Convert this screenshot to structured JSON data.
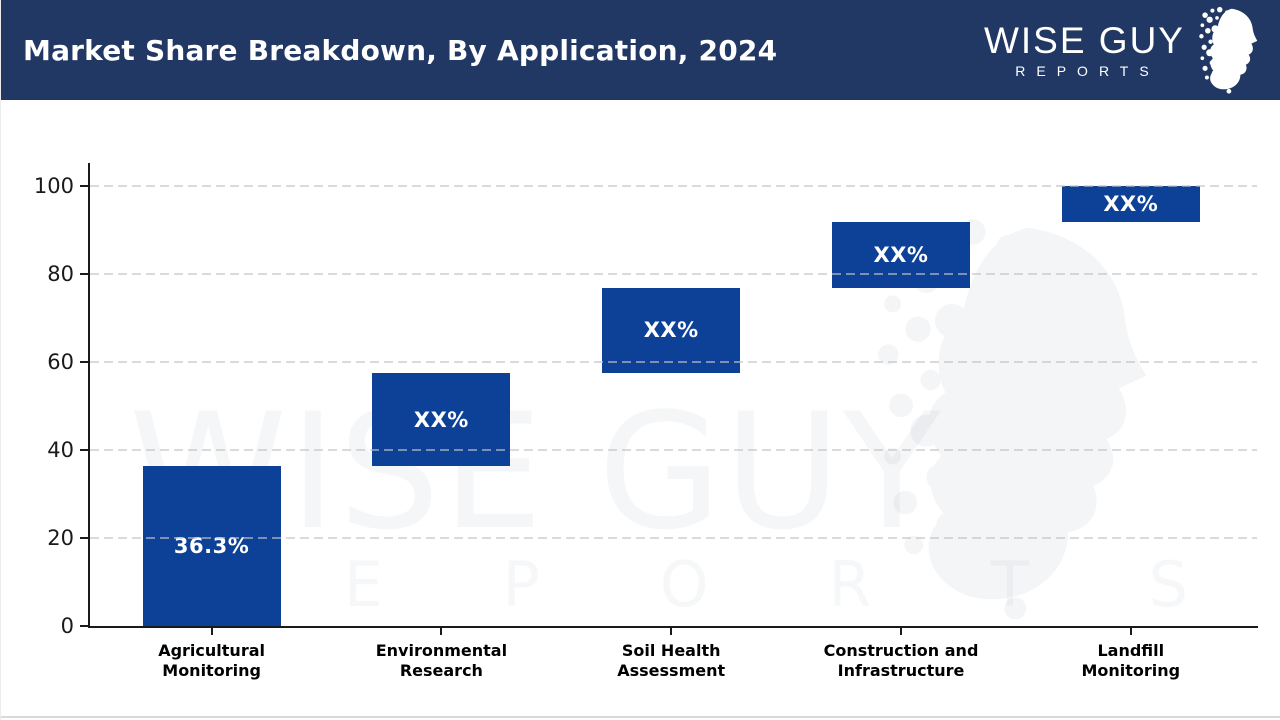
{
  "header": {
    "title": "Market Share Breakdown, By Application, 2024",
    "bg_color": "#213864",
    "logo": {
      "line1": "WISE GUY",
      "line2": "REPORTS"
    }
  },
  "watermark": {
    "line1": "WISE GUY",
    "line2": "R E P O R T S"
  },
  "chart_data": {
    "type": "bar",
    "subtype": "waterfall",
    "title": "Market Share Breakdown, By Application, 2024",
    "xlabel": "",
    "ylabel": "",
    "ylim": [
      0,
      105
    ],
    "yticks": [
      0,
      20,
      40,
      60,
      80,
      100
    ],
    "grid": "dashed-horizontal",
    "legend": "none",
    "bar_color": "#0d4097",
    "value_label_color": "#ffffff",
    "categories": [
      "Agricultural Monitoring",
      "Environmental Research",
      "Soil Health Assessment",
      "Construction and Infrastructure",
      "Landfill Monitoring"
    ],
    "segments": [
      {
        "category": "Agricultural Monitoring",
        "label_lines": [
          "Agricultural",
          "Monitoring"
        ],
        "start": 0,
        "end": 36.3,
        "label": "36.3%"
      },
      {
        "category": "Environmental Research",
        "label_lines": [
          "Environmental",
          "Research"
        ],
        "start": 36.3,
        "end": 57.6,
        "label": "XX%"
      },
      {
        "category": "Soil Health Assessment",
        "label_lines": [
          "Soil Health",
          "Assessment"
        ],
        "start": 57.6,
        "end": 76.9,
        "label": "XX%"
      },
      {
        "category": "Construction and Infrastructure",
        "label_lines": [
          "Construction and",
          "Infrastructure"
        ],
        "start": 76.9,
        "end": 91.9,
        "label": "XX%"
      },
      {
        "category": "Landfill Monitoring",
        "label_lines": [
          "Landfill",
          "Monitoring"
        ],
        "start": 91.9,
        "end": 100,
        "label": "XX%"
      }
    ]
  }
}
